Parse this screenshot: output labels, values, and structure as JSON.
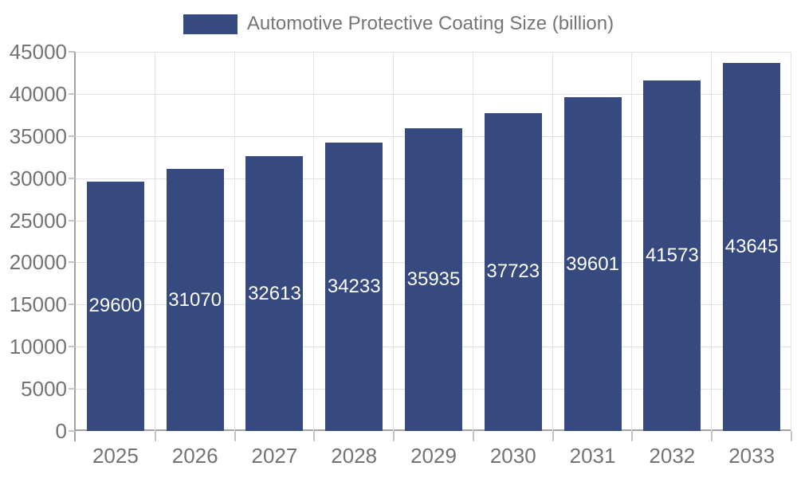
{
  "legend": {
    "label": "Automotive Protective Coating Size (billion)"
  },
  "chart_data": {
    "type": "bar",
    "title": "Automotive Protective Coating Size (billion)",
    "categories": [
      "2025",
      "2026",
      "2027",
      "2028",
      "2029",
      "2030",
      "2031",
      "2032",
      "2033"
    ],
    "series": [
      {
        "name": "Automotive Protective Coating Size (billion)",
        "values": [
          29600,
          31070,
          32613,
          34233,
          35935,
          37723,
          39601,
          41573,
          43645
        ]
      }
    ],
    "bar_labels": [
      "29600",
      "31070",
      "32613",
      "34233",
      "35935",
      "37723",
      "39601",
      "41573",
      "43645"
    ],
    "xlabel": "",
    "ylabel": "",
    "ylim": [
      0,
      45000
    ],
    "ytick_interval": 5000,
    "ytick_labels": [
      "0",
      "5000",
      "10000",
      "15000",
      "20000",
      "25000",
      "30000",
      "35000",
      "40000",
      "45000"
    ],
    "grid": true,
    "legend_position": "top",
    "colors": {
      "bar": "#374A7F",
      "bar_label": "#ffffff",
      "axis_text": "#737373",
      "legend_text": "#757575",
      "gridline": "#e3e3e3",
      "axis_line": "#a2a2a2"
    }
  }
}
